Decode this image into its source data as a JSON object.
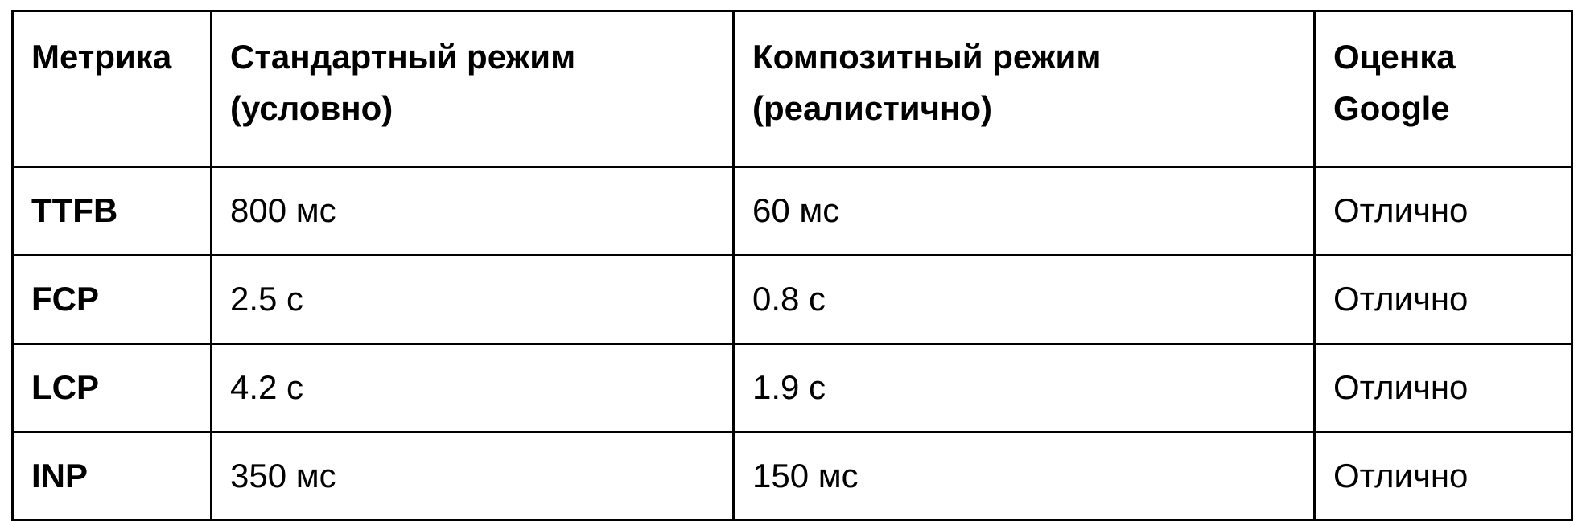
{
  "table": {
    "name": "performance-metrics-comparison",
    "columns": [
      {
        "label": "Метрика"
      },
      {
        "label": "Стандартный режим\n(условно)"
      },
      {
        "label": "Композитный режим\n(реалистично)"
      },
      {
        "label": "Оценка\nGoogle"
      }
    ],
    "rows": [
      {
        "metric": "TTFB",
        "standard": "800 мс",
        "composite": "60 мс",
        "score": "Отлично"
      },
      {
        "metric": "FCP",
        "standard": "2.5 с",
        "composite": "0.8 с",
        "score": "Отлично"
      },
      {
        "metric": "LCP",
        "standard": "4.2 с",
        "composite": "1.9 с",
        "score": "Отлично"
      },
      {
        "metric": "INP",
        "standard": "350 мс",
        "composite": "150 мс",
        "score": "Отлично"
      }
    ],
    "colors": {
      "border": "#000000",
      "background": "#ffffff",
      "text": "#000000"
    }
  }
}
